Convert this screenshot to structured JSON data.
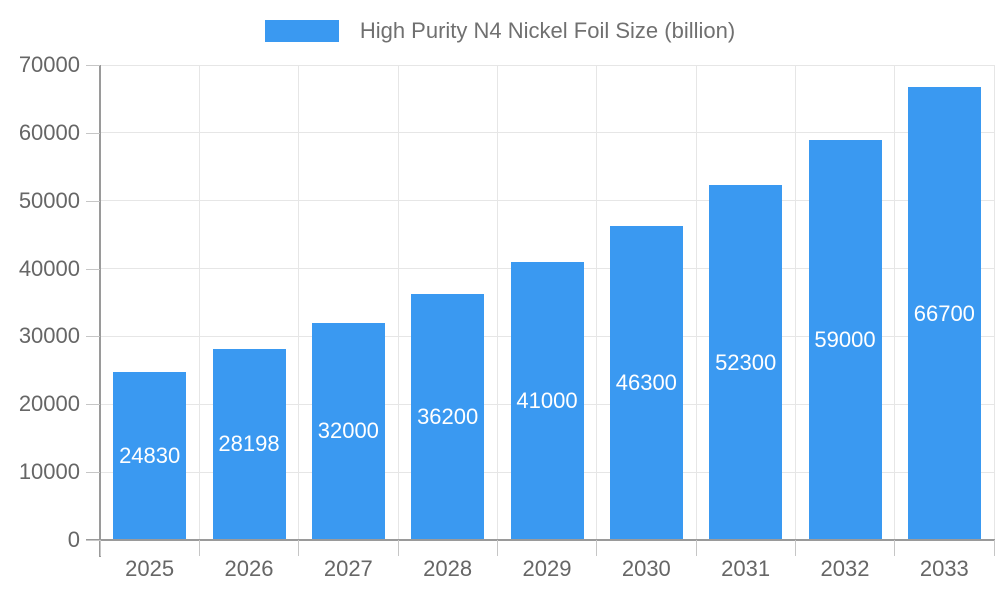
{
  "legend": {
    "label": "High Purity N4 Nickel Foil Size (billion)"
  },
  "chart_data": {
    "type": "bar",
    "title": "High Purity N4 Nickel Foil Size (billion)",
    "categories": [
      "2025",
      "2026",
      "2027",
      "2028",
      "2029",
      "2030",
      "2031",
      "2032",
      "2033"
    ],
    "values": [
      24830,
      28198,
      32000,
      36200,
      41000,
      46300,
      52300,
      59000,
      66700
    ],
    "value_labels": [
      "24830",
      "28198",
      "32000",
      "36200",
      "41000",
      "46300",
      "52300",
      "59000",
      "66700"
    ],
    "xlabel": "",
    "ylabel": "",
    "ylim": [
      0,
      70000
    ],
    "ytick_interval": 10000,
    "yticks": [
      0,
      10000,
      20000,
      30000,
      40000,
      50000,
      60000,
      70000
    ],
    "ytick_labels": [
      "0",
      "10000",
      "20000",
      "30000",
      "40000",
      "50000",
      "60000",
      "70000"
    ],
    "grid": true,
    "legend_position": "top",
    "colors": {
      "bar": "#3A99F1",
      "value_label": "#FFFFFF",
      "axis_line": "#9A9A9A",
      "gridline": "#E6E6E6",
      "tick": "#C6C6C6",
      "tick_label": "#666666",
      "legend_text": "#707070",
      "background": "#FFFFFF"
    }
  }
}
